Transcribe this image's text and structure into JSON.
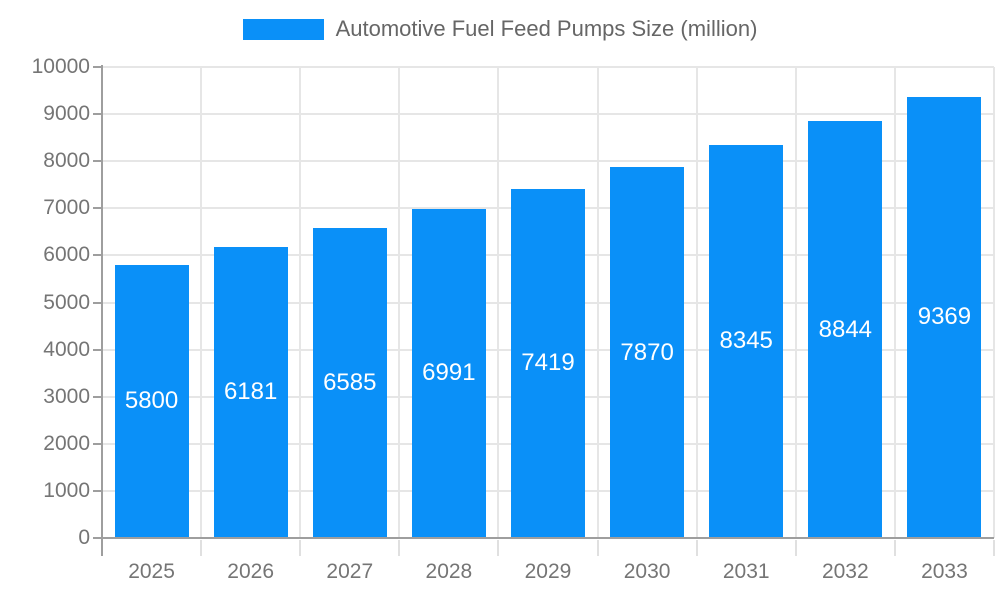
{
  "chart_data": {
    "type": "bar",
    "title": "Automotive Fuel Feed Pumps Size (million)",
    "categories": [
      "2025",
      "2026",
      "2027",
      "2028",
      "2029",
      "2030",
      "2031",
      "2032",
      "2033"
    ],
    "values": [
      5800,
      6181,
      6585,
      6991,
      7419,
      7870,
      8345,
      8844,
      9369
    ],
    "xlabel": "",
    "ylabel": "",
    "ylim": [
      0,
      10000
    ],
    "ytick_step": 1000,
    "ytick_labels": [
      "0",
      "1000",
      "2000",
      "3000",
      "4000",
      "5000",
      "6000",
      "7000",
      "8000",
      "9000",
      "10000"
    ],
    "grid": true,
    "legend_position": "top-center",
    "value_label_position": "inside-middle",
    "colors": {
      "bar": "#0a90f8",
      "value_label": "#ffffff",
      "grid_line": "#e6e6e6",
      "axis_line": "#9e9e9e",
      "x_tick": "#e0e0e0",
      "tick_label": "#757575",
      "legend_text": "#666666",
      "background": "#ffffff"
    }
  }
}
